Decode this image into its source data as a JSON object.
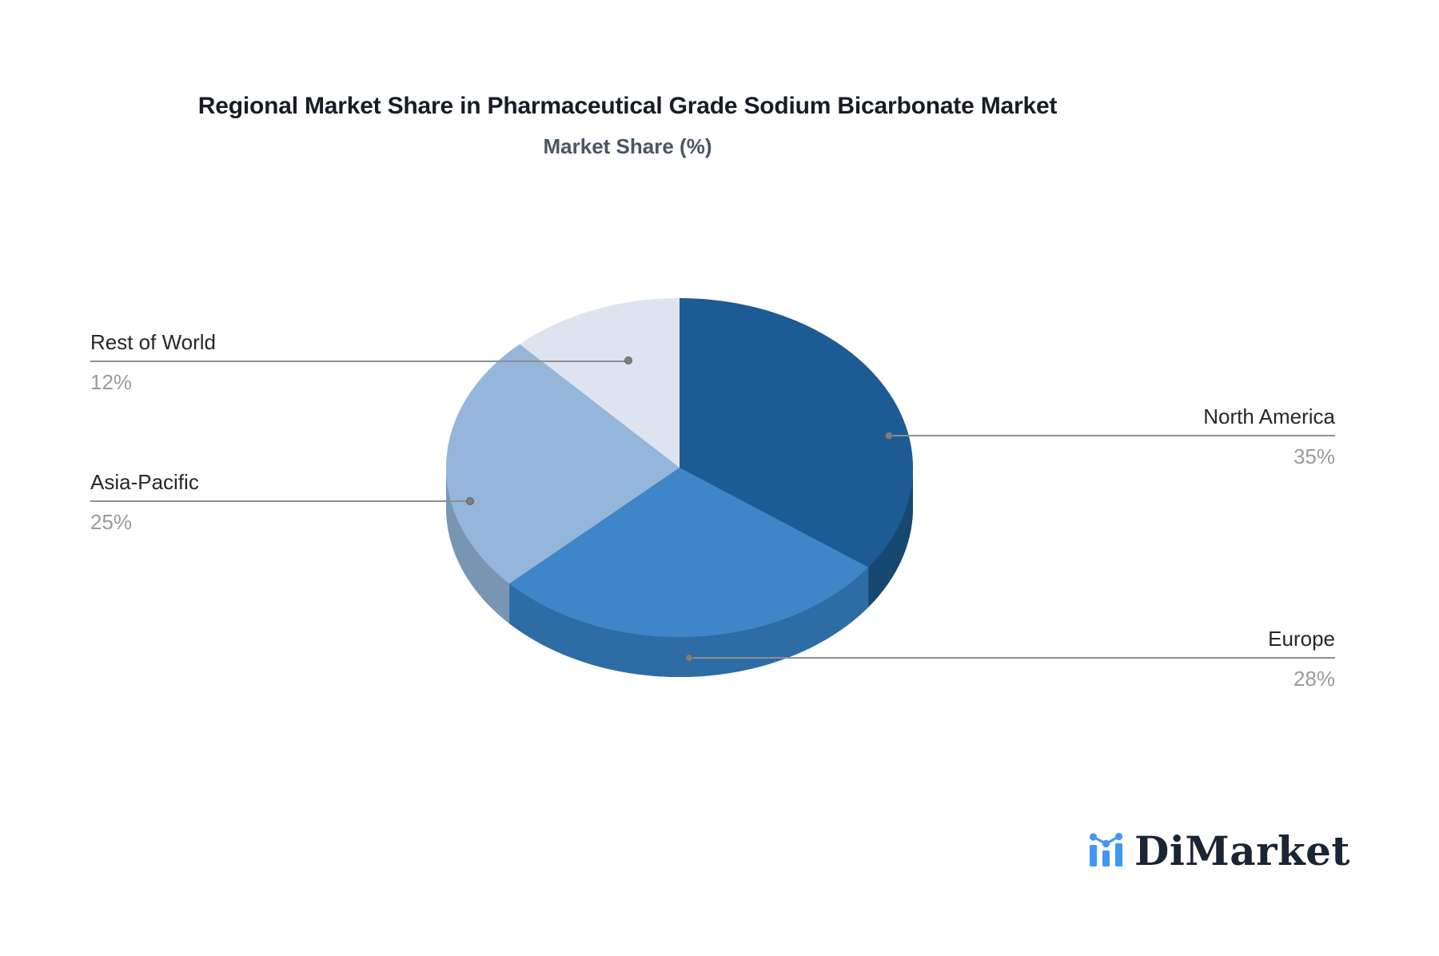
{
  "chart_data": {
    "type": "pie",
    "title": "Regional Market Share in Pharmaceutical Grade Sodium Bicarbonate Market",
    "subtitle": "Market Share (%)",
    "unit": "%",
    "style": "3d-pie",
    "start_angle_deg": 0,
    "direction": "clockwise",
    "legend": "none",
    "labels": "callouts-with-leader-lines",
    "slices": [
      {
        "label": "North America",
        "value": 35,
        "pct_label": "35%",
        "color": "#1d5b94",
        "side_color": "#174872"
      },
      {
        "label": "Europe",
        "value": 28,
        "pct_label": "28%",
        "color": "#3e86c8",
        "side_color": "#2e6ca5"
      },
      {
        "label": "Asia-Pacific",
        "value": 25,
        "pct_label": "25%",
        "color": "#94b6da",
        "side_color": "#7995b4"
      },
      {
        "label": "Rest of World",
        "value": 12,
        "pct_label": "12%",
        "color": "#dde4ef",
        "side_color": "#b9c6d6"
      }
    ]
  },
  "theme": {
    "background": "#ffffff",
    "title_color": "#181c24",
    "subtitle_color": "#4b5563",
    "label_color": "#27272a",
    "pct_color": "#9b9b9b",
    "leader_line": "#8f8f8f",
    "dot_fill": "#7e7e7e",
    "dot_stroke": "#5f5f5f"
  },
  "logo": {
    "text": "DiMarket",
    "accent": "#4196f3",
    "text_color": "#1a2433",
    "icon": "bar-line-chart-icon"
  }
}
